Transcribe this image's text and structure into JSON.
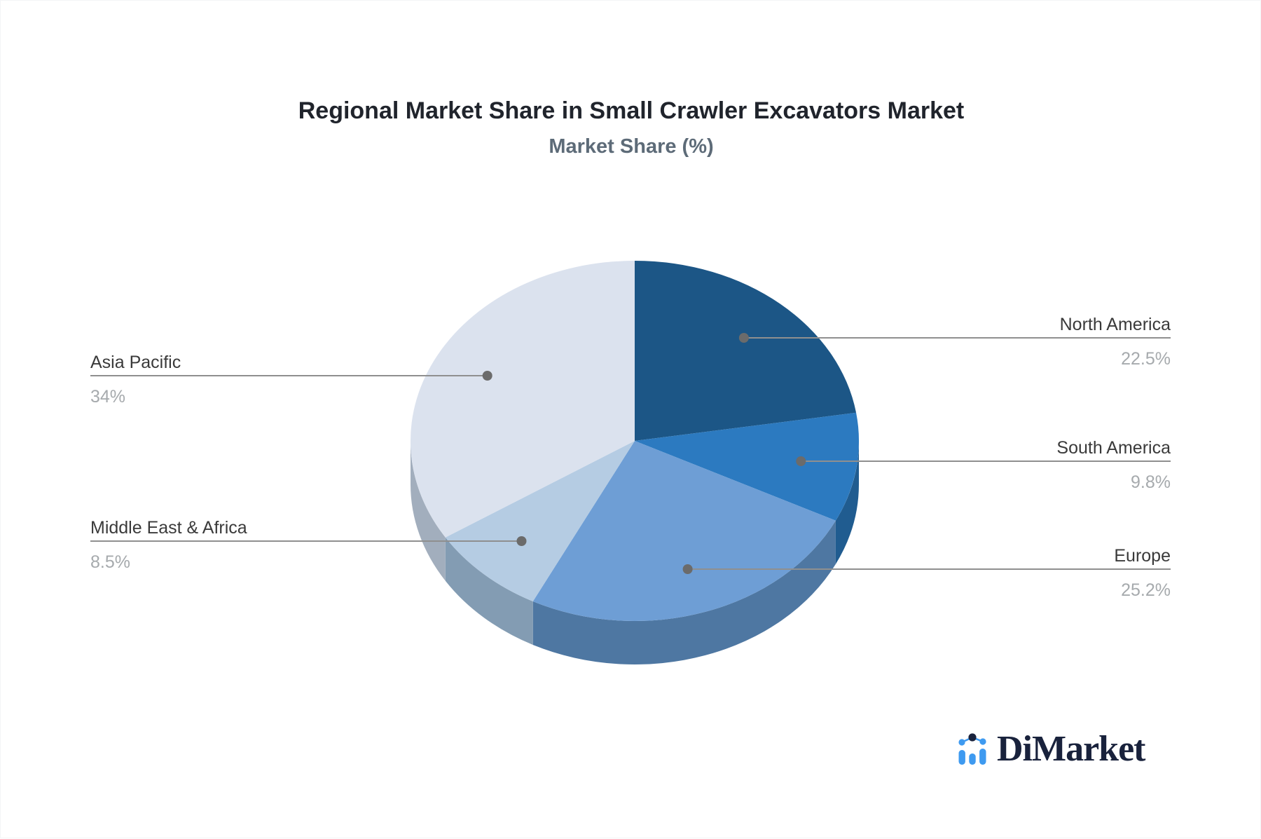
{
  "chart_data": {
    "type": "pie",
    "style": "3d",
    "title": "Regional Market Share in Small Crawler Excavators Market",
    "subtitle": "Market Share (%)",
    "unit": "%",
    "legend": false,
    "start_angle_deg": 0,
    "clockwise": true,
    "segments": [
      {
        "label": "North America",
        "value": 22.5,
        "display": "22.5%",
        "color": "#1c5686",
        "side_color": "#143f66",
        "label_side": "right"
      },
      {
        "label": "South America",
        "value": 9.8,
        "display": "9.8%",
        "color": "#2c7ac0",
        "side_color": "#205c90",
        "label_side": "right"
      },
      {
        "label": "Europe",
        "value": 25.2,
        "display": "25.2%",
        "color": "#6e9ed5",
        "side_color": "#4e77a2",
        "label_side": "right"
      },
      {
        "label": "Middle East & Africa",
        "value": 8.5,
        "display": "8.5%",
        "color": "#b5cce3",
        "side_color": "#839cb3",
        "label_side": "left"
      },
      {
        "label": "Asia Pacific",
        "value": 34,
        "display": "34%",
        "color": "#dbe2ee",
        "side_color": "#a2aebd",
        "label_side": "left"
      }
    ]
  },
  "watermark": {
    "text": "DiMarket"
  },
  "styles": {
    "background": "#ffffff",
    "title_color": "#20242c",
    "subtitle_color": "#5d6b78",
    "label_color": "#3a3a3a",
    "value_color": "#a6aaad",
    "leader_line_color": "#8f8f8f",
    "leader_dot_color": "#6b6b6b",
    "logo_blue": "#3e9af0",
    "logo_navy": "#19223c"
  }
}
